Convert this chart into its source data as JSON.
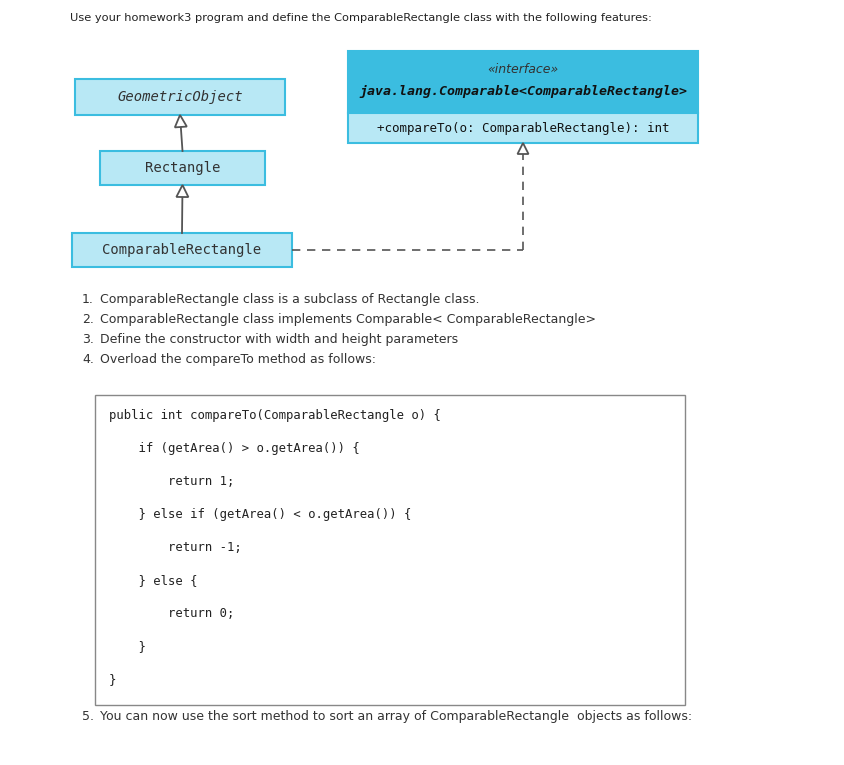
{
  "title_text": "Use your homework3 program and define the ComparableRectangle class with the following features:",
  "bg_color": "#ffffff",
  "box_geo_label": "GeometricObject",
  "box_rect_label": "Rectangle",
  "box_comp_label": "ComparableRectangle",
  "box_light_blue": "#b8e8f5",
  "box_dark_blue": "#3bbde0",
  "box_border": "#3bbde0",
  "interface_title": "«interface»",
  "interface_name": "java.lang.Comparable<ComparableRectangle>",
  "interface_method": "+compareTo(o: ComparableRectangle): int",
  "list_items": [
    "ComparableRectangle class is a subclass of Rectangle class.",
    "ComparableRectangle class implements Comparable< ComparableRectangle>",
    "Define the constructor with width and height parameters",
    "Overload the compareTo method as follows:"
  ],
  "code_lines": [
    "public int compareTo(ComparableRectangle o) {",
    "",
    "    if (getArea() > o.getArea()) {",
    "",
    "        return 1;",
    "",
    "    } else if (getArea() < o.getArea()) {",
    "",
    "        return -1;",
    "",
    "    } else {",
    "",
    "        return 0;",
    "",
    "    }",
    "",
    "}"
  ],
  "item5_text": "You can now use the sort method to sort an array of ComparableRectangle  objects as follows:"
}
